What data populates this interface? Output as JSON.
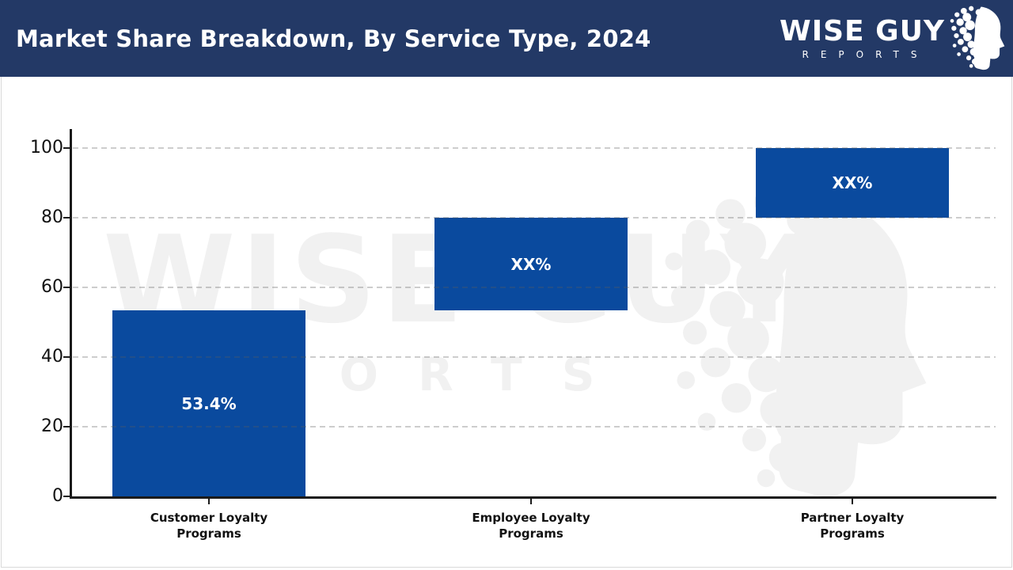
{
  "colors": {
    "header_bg": "#233966",
    "bar": "#0a4a9e",
    "bar_label": "#ffffff",
    "axis": "#1a1a1a",
    "gridline": "#d1d1d1",
    "watermark": "#f1f1f1",
    "title_text": "#ffffff"
  },
  "header": {
    "title": "Market Share Breakdown, By Service Type, 2024"
  },
  "logo": {
    "brand_line1": "WISE GUY",
    "brand_line2": "REPORTS"
  },
  "watermark": {
    "line1": "WISE GUY",
    "line2": "REPORTS"
  },
  "chart_data": {
    "type": "bar",
    "subtype": "stacked-waterfall-percentage",
    "title": "Market Share Breakdown, By Service Type, 2024",
    "categories": [
      [
        "Customer Loyalty",
        "Programs"
      ],
      [
        "Employee Loyalty",
        "Programs"
      ],
      [
        "Partner Loyalty",
        "Programs"
      ]
    ],
    "bars": [
      {
        "category": "Customer Loyalty Programs",
        "label": "53.4%",
        "start": 0,
        "end": 53.4,
        "value": 53.4
      },
      {
        "category": "Employee Loyalty Programs",
        "label": "XX%",
        "start": 53.4,
        "end": 80,
        "value": 26.6
      },
      {
        "category": "Partner Loyalty Programs",
        "label": "XX%",
        "start": 80,
        "end": 100,
        "value": 20
      }
    ],
    "xlabel": "",
    "ylabel": "",
    "ylim": [
      0,
      105
    ],
    "yticks": [
      0,
      20,
      40,
      60,
      80,
      100
    ],
    "grid": "horizontal-dashed",
    "legend": "none",
    "bar_color": "#0a4a9e",
    "bar_label_color": "#ffffff"
  }
}
